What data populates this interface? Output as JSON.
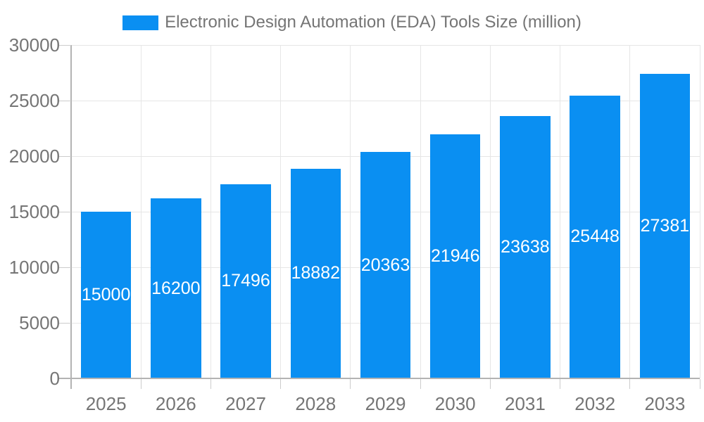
{
  "chart_data": {
    "type": "bar",
    "title": "Electronic Design Automation (EDA) Tools Size (million)",
    "categories": [
      "2025",
      "2026",
      "2027",
      "2028",
      "2029",
      "2030",
      "2031",
      "2032",
      "2033"
    ],
    "series": [
      {
        "name": "Electronic Design Automation (EDA) Tools Size (million)",
        "values": [
          15000,
          16200,
          17496,
          18882,
          20363,
          21946,
          23638,
          25448,
          27381
        ]
      }
    ],
    "xlabel": "",
    "ylabel": "",
    "ylim": [
      0,
      30000
    ],
    "yticks": [
      0,
      5000,
      10000,
      15000,
      20000,
      25000,
      30000
    ],
    "grid": true,
    "legend_position": "top",
    "value_labels": "inside-center"
  },
  "legend": {
    "label": "Electronic Design Automation (EDA) Tools Size (million)"
  },
  "colors": {
    "bar": "#0a8ff2",
    "grid": "#e6e6e6",
    "axis": "#b3b3b3",
    "tick": "#cccccc",
    "axis_text": "#757575",
    "bar_label_text": "#ffffff",
    "legend_text": "#757575",
    "background": "#ffffff"
  }
}
